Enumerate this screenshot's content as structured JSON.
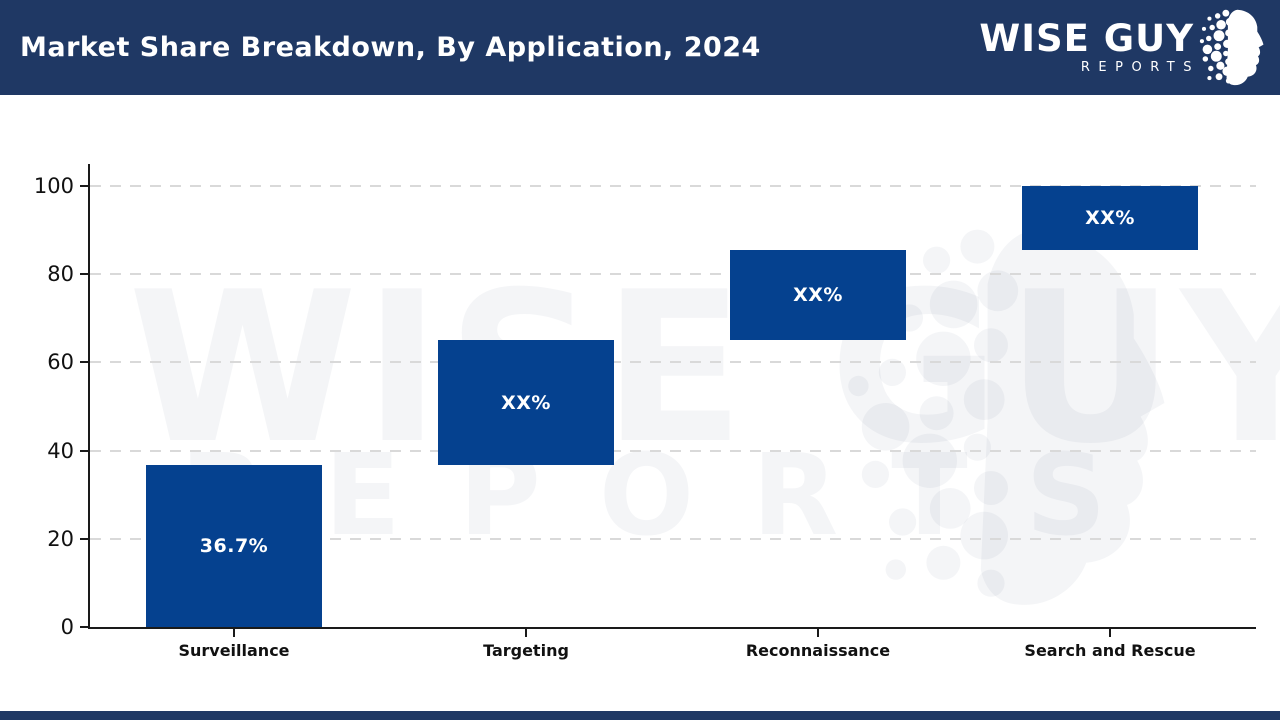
{
  "header": {
    "title": "Market Share Breakdown, By Application, 2024",
    "logo": {
      "line1": "WISE GUY",
      "line2": "REPORTS"
    }
  },
  "watermark": {
    "line1": "WISE GUY",
    "line2": "REPORTS"
  },
  "chart_data": {
    "type": "bar",
    "subtype": "floating-waterfall",
    "title": "Market Share Breakdown, By Application, 2024",
    "categories": [
      "Surveillance",
      "Targeting",
      "Reconnaissance",
      "Search and Rescue"
    ],
    "segments": [
      {
        "category": "Surveillance",
        "start": 0,
        "end": 36.7,
        "label": "36.7%"
      },
      {
        "category": "Targeting",
        "start": 36.7,
        "end": 65.0,
        "label": "XX%"
      },
      {
        "category": "Reconnaissance",
        "start": 65.0,
        "end": 85.5,
        "label": "XX%"
      },
      {
        "category": "Search and Rescue",
        "start": 85.5,
        "end": 100.0,
        "label": "XX%"
      }
    ],
    "xlabel": "",
    "ylabel": "",
    "yticks": [
      0,
      20,
      40,
      60,
      80,
      100
    ],
    "ylim": [
      0,
      100
    ],
    "grid": "horizontal-dashed",
    "legend": "none",
    "bar_color": "#05418f",
    "bar_label_color": "#ffffff",
    "axis_color": "#1a1a1a",
    "grid_color": "#d9d9d9",
    "header_color": "#1f3864",
    "background_color": "#ffffff"
  }
}
